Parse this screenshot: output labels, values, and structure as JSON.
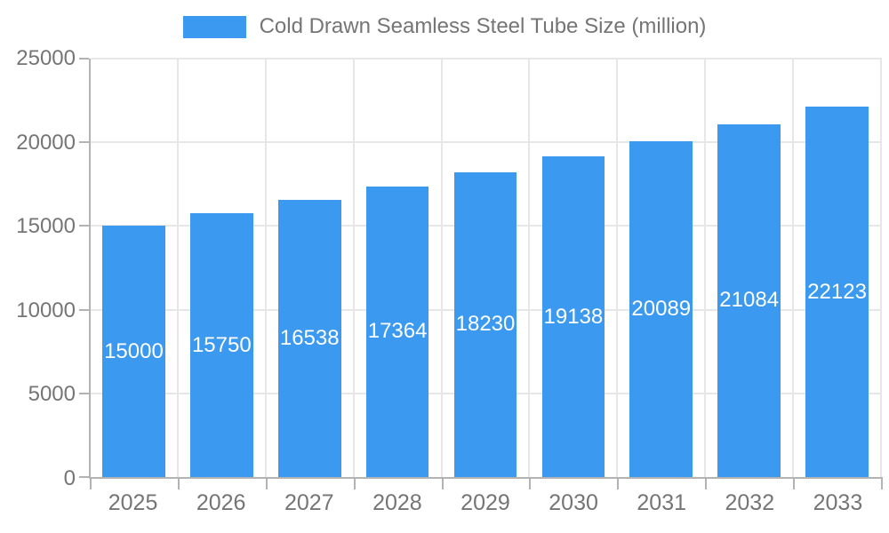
{
  "legend": {
    "label": "Cold Drawn Seamless Steel Tube Size (million)",
    "swatch_color": "#3b99ef"
  },
  "chart_data": {
    "type": "bar",
    "title": "Cold Drawn Seamless Steel Tube Size (million)",
    "series_name": "Cold Drawn Seamless Steel Tube Size (million)",
    "categories": [
      "2025",
      "2026",
      "2027",
      "2028",
      "2029",
      "2030",
      "2031",
      "2032",
      "2033"
    ],
    "values": [
      15000,
      15750,
      16538,
      17364,
      18230,
      19138,
      20089,
      21084,
      22123
    ],
    "bar_value_labels": [
      "15000",
      "15750",
      "16538",
      "17364",
      "18230",
      "19138",
      "20089",
      "21084",
      "22123"
    ],
    "xlabel": "",
    "ylabel": "",
    "ylim": [
      0,
      25000
    ],
    "yticks": [
      0,
      5000,
      10000,
      15000,
      20000,
      25000
    ],
    "grid": true,
    "legend_position": "top",
    "value_labels_position": "center-of-bar",
    "colors": {
      "bar": "#3b99ef",
      "grid": "#e7e7e7",
      "axis": "#b3b3b3",
      "tick_label": "#757575",
      "bar_label": "#ffffff",
      "background": "#ffffff"
    }
  }
}
